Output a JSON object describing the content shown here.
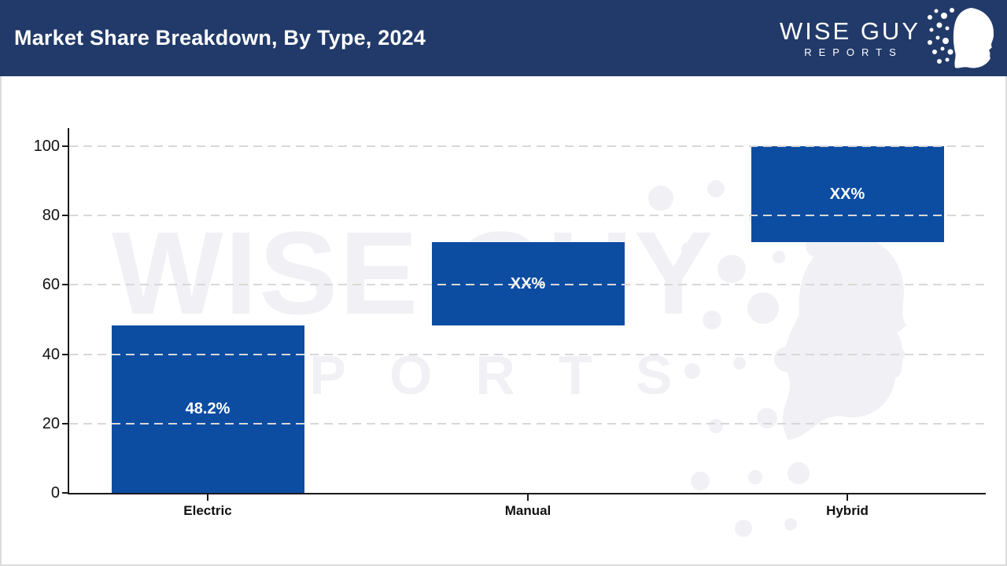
{
  "header": {
    "title": "Market Share Breakdown, By Type, 2024",
    "logo": {
      "line1": "WISE GUY",
      "line2": "REPORTS"
    }
  },
  "watermark": {
    "line1": "WISE GUY",
    "line2": "REPORTS"
  },
  "colors": {
    "header_bg": "#213A69",
    "bar_fill": "#0C4DA2",
    "grid": "#D8D8D8",
    "axis": "#1A1A1A",
    "bar_label_text": "#FFFFFF",
    "watermark": "#F1F1F5"
  },
  "chart_data": {
    "type": "bar",
    "subtype": "waterfall",
    "title": "Market Share Breakdown, By Type, 2024",
    "xlabel": "",
    "ylabel": "",
    "categories": [
      "Electric",
      "Manual",
      "Hybrid"
    ],
    "segments": [
      {
        "category": "Electric",
        "from": 0,
        "to": 48.2,
        "label": "48.2%"
      },
      {
        "category": "Manual",
        "from": 48.2,
        "to": 72.3,
        "label": "XX%"
      },
      {
        "category": "Hybrid",
        "from": 72.3,
        "to": 100,
        "label": "XX%"
      }
    ],
    "yticks": [
      0,
      20,
      40,
      60,
      80,
      100
    ],
    "ylim": [
      0,
      105
    ],
    "grid": "horizontal-dashed",
    "legend": "none"
  }
}
